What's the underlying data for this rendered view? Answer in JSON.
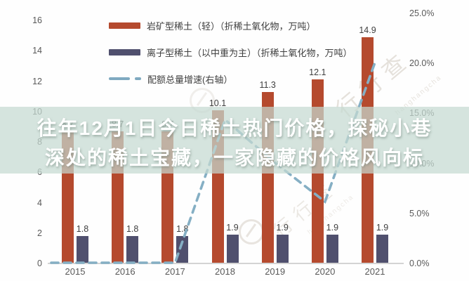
{
  "title_overlay": {
    "line1": "往年12月1日今日稀土热门价格，探秘小巷",
    "line2": "深处的稀土宝藏，一家隐藏的价格风向标"
  },
  "watermark": {
    "text": "行行查",
    "subtext": "hanghangcha"
  },
  "legend": [
    {
      "label": "岩矿型稀土（轻）（折稀土氧化物，万吨）",
      "color": "#b54a2e"
    },
    {
      "label": "离子型稀土（以中重为主）（折稀土氧化物，万吨）",
      "color": "#50506e"
    },
    {
      "label": "配额总量增速(右轴）",
      "color": "#7fa9c0"
    }
  ],
  "colors": {
    "rock_bar": "#b54a2e",
    "ionic_bar": "#50506e",
    "growth_line": "#85afc4",
    "band": "#c5dad1",
    "axis_text": "#595959",
    "value_text": "#3f3f3f"
  },
  "chart_data": {
    "type": "bar",
    "categories": [
      "2015",
      "2016",
      "2017",
      "2018",
      "2019",
      "2020",
      "2021"
    ],
    "series": [
      {
        "name": "岩矿型稀土（轻）（折稀土氧化物，万吨）",
        "type": "bar",
        "axis": "left",
        "color": "#b54a2e",
        "values": [
          8.7,
          8.7,
          8.7,
          10.1,
          11.3,
          12.1,
          14.9
        ],
        "labels": [
          "8.7",
          "8.7",
          "8.7",
          "10.1",
          "11.3",
          "12.1",
          "14.9"
        ]
      },
      {
        "name": "离子型稀土（以中重为主）（折稀土氧化物，万吨）",
        "type": "bar",
        "axis": "left",
        "color": "#50506e",
        "values": [
          1.8,
          1.8,
          1.8,
          1.9,
          1.9,
          1.9,
          1.9
        ],
        "labels": [
          "1.8",
          "1.8",
          "1.8",
          "1.9",
          "1.9",
          "1.9",
          "1.9"
        ]
      },
      {
        "name": "配额总量增速(右轴)",
        "type": "line",
        "style": "dashed",
        "axis": "right",
        "color": "#85afc4",
        "values_pct": [
          0,
          0,
          0,
          14.3,
          10.0,
          6.1,
          20.0
        ]
      }
    ],
    "left_axis": {
      "ticks": [
        "16",
        "14",
        "12",
        "10",
        "8",
        "6",
        "4",
        "2",
        "0"
      ],
      "min": 0,
      "max": 16
    },
    "right_axis": {
      "ticks": [
        "25.0%",
        "20.0%",
        "15.0%",
        "10.0%",
        "5.0%",
        "0.0%"
      ],
      "min": 0,
      "max": 25
    },
    "grid": false,
    "legend_position": "top-left"
  }
}
